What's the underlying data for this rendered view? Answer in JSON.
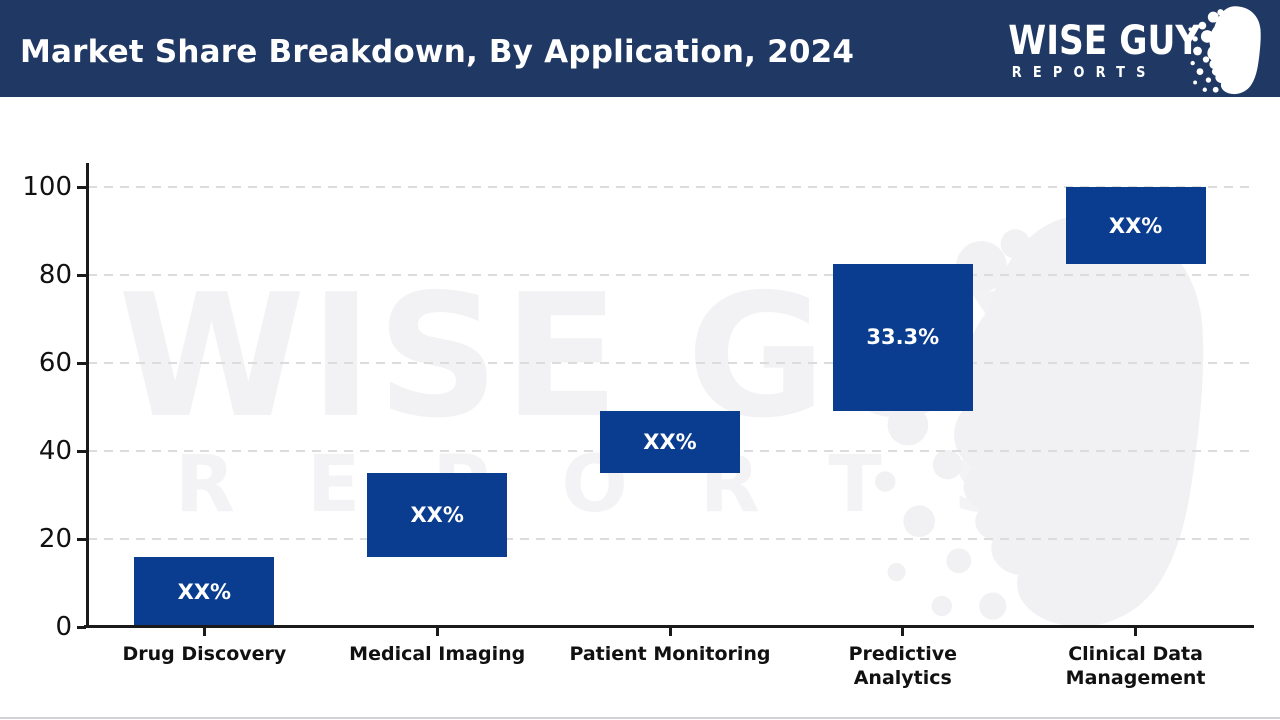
{
  "header": {
    "title": "Market Share Breakdown, By Application, 2024",
    "bg_color": "#1f3864",
    "logo": {
      "line1": "WISE GUY",
      "line2": "REPORTS"
    }
  },
  "watermark": {
    "line1": "WISE GUY",
    "line2": "REPORTS"
  },
  "chart_data": {
    "type": "bar",
    "subtype": "waterfall",
    "title": "Market Share Breakdown, By Application, 2024",
    "categories": [
      "Drug Discovery",
      "Medical Imaging",
      "Patient Monitoring",
      "Predictive Analytics",
      "Clinical Data Management"
    ],
    "tick_labels": [
      "Drug Discovery",
      "Medical Imaging",
      "Patient Monitoring",
      "Predictive\nAnalytics",
      "Clinical Data\nManagement"
    ],
    "segments": [
      {
        "category": "Drug Discovery",
        "start": 0,
        "end": 16,
        "label": "XX%"
      },
      {
        "category": "Medical Imaging",
        "start": 16,
        "end": 35,
        "label": "XX%"
      },
      {
        "category": "Patient Monitoring",
        "start": 35,
        "end": 49.2,
        "label": "XX%"
      },
      {
        "category": "Predictive Analytics",
        "start": 49.2,
        "end": 82.5,
        "label": "33.3%"
      },
      {
        "category": "Clinical Data Management",
        "start": 82.5,
        "end": 100,
        "label": "XX%"
      }
    ],
    "yticks": [
      0,
      20,
      40,
      60,
      80,
      100
    ],
    "ylim": [
      0,
      100
    ],
    "xlabel": "",
    "ylabel": "",
    "grid": "horizontal-dashed",
    "legend": "none",
    "bar_color": "#0a3c8f",
    "bar_label_color": "#ffffff",
    "grid_color": "#dcdcdc",
    "axis_color": "#1a1a1a"
  }
}
